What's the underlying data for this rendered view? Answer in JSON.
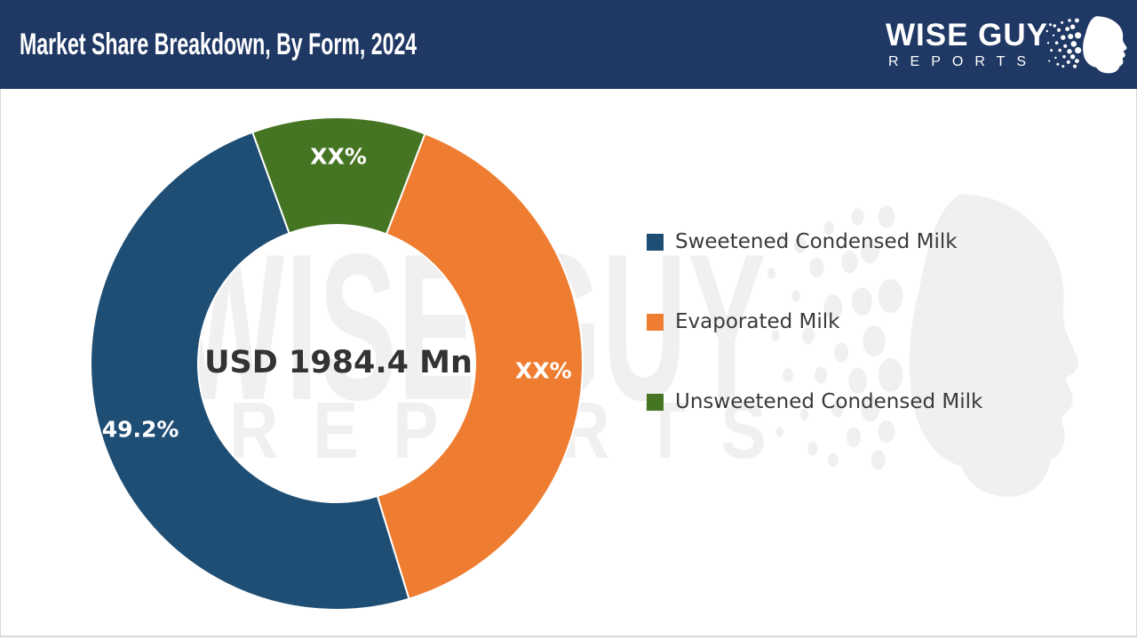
{
  "header": {
    "title": "Market Share Breakdown, By Form, 2024",
    "logo_line1": "WISE GUY",
    "logo_line2": "REPORTS",
    "bg_color": "#1F3864"
  },
  "watermark": {
    "line1": "WISE GUY",
    "line2": "REPORTS",
    "color": "#F0F0F0"
  },
  "chart_data": {
    "type": "pie",
    "subtype": "donut",
    "title": "Market Share Breakdown, By Form, 2024",
    "center_label": "USD 1984.4 Mn",
    "start_angle_deg": 110,
    "direction": "counterclockwise",
    "legend_position": "right",
    "slices": [
      {
        "label": "Sweetened Condensed Milk",
        "value_pct": 49.2,
        "display_label": "49.2%",
        "color": "#1F4E74"
      },
      {
        "label": "Evaporated Milk",
        "value_pct": 39.4,
        "display_label": "XX%",
        "color": "#EE7D31"
      },
      {
        "label": "Unsweetened Condensed Milk",
        "value_pct": 11.4,
        "display_label": "XX%",
        "color": "#457422"
      }
    ]
  },
  "colors": {
    "center_text": "#333333",
    "legend_text": "#3A3A3A",
    "slice_label_text": "#FFFFFF",
    "frame_border": "#D8D8D8",
    "slice_gap": "#FFFFFF"
  }
}
